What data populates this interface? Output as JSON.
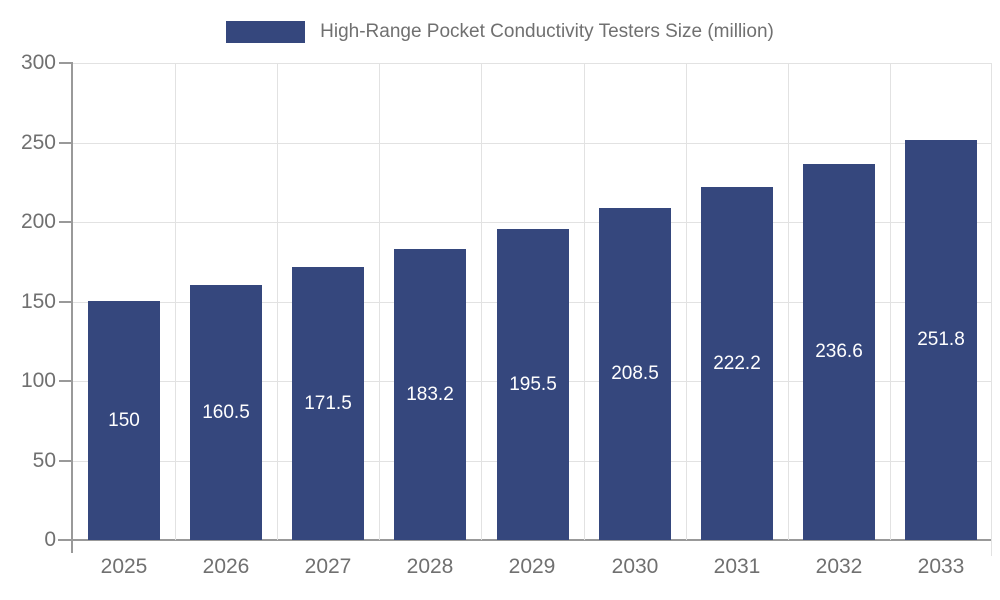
{
  "legend": {
    "label": "High-Range Pocket Conductivity Testers Size (million)",
    "position": "top"
  },
  "chart_data": {
    "type": "bar",
    "title": "High-Range Pocket Conductivity Testers Size (million)",
    "categories": [
      "2025",
      "2026",
      "2027",
      "2028",
      "2029",
      "2030",
      "2031",
      "2032",
      "2033"
    ],
    "values": [
      150,
      160.5,
      171.5,
      183.2,
      195.5,
      208.5,
      222.2,
      236.6,
      251.8
    ],
    "value_labels": [
      "150",
      "160.5",
      "171.5",
      "183.2",
      "195.5",
      "208.5",
      "222.2",
      "236.6",
      "251.8"
    ],
    "xlabel": "",
    "ylabel": "",
    "ylim": [
      0,
      300
    ],
    "y_ticks": [
      0,
      50,
      100,
      150,
      200,
      250,
      300
    ],
    "grid": true,
    "legend_position": "top",
    "value_labels_inside_bars": true
  },
  "colors": {
    "bar": "#35477d",
    "axis_line": "#999999",
    "gridline": "#e2e2e2",
    "tick_text": "#707070",
    "value_text": "#ffffff",
    "background": "#ffffff"
  }
}
